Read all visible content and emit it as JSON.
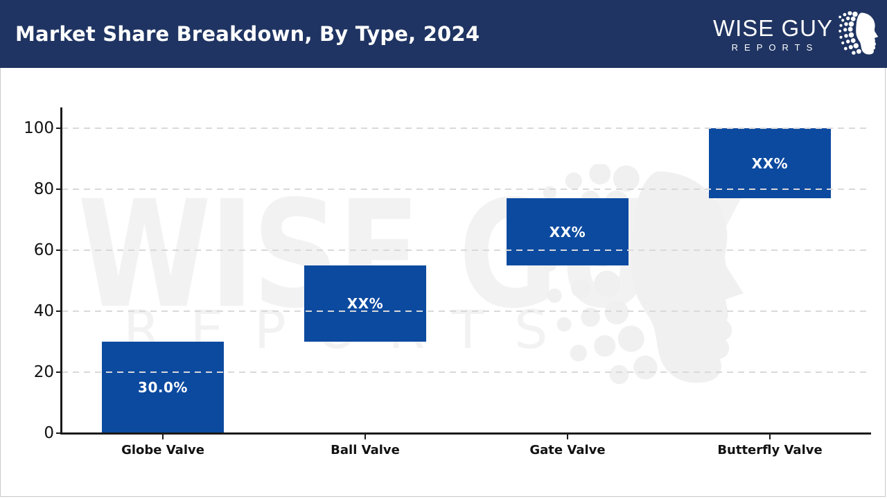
{
  "header": {
    "title": "Market Share Breakdown, By Type, 2024",
    "logo": {
      "line1": "WISE GUY",
      "line2": "REPORTS"
    }
  },
  "watermark": {
    "line1": "WISE GUY",
    "line2": "REPORTS"
  },
  "chart_data": {
    "type": "bar",
    "variant": "waterfall",
    "title": "Market Share Breakdown, By Type, 2024",
    "categories": [
      "Globe Valve",
      "Ball Valve",
      "Gate Valve",
      "Butterfly Valve"
    ],
    "segments": [
      {
        "category": "Globe Valve",
        "start": 0,
        "end": 30,
        "value": 30,
        "label": "30.0%"
      },
      {
        "category": "Ball Valve",
        "start": 30,
        "end": 55,
        "value": 25,
        "label": "XX%"
      },
      {
        "category": "Gate Valve",
        "start": 55,
        "end": 77,
        "value": 22,
        "label": "XX%"
      },
      {
        "category": "Butterfly Valve",
        "start": 77,
        "end": 100,
        "value": 23,
        "label": "XX%"
      }
    ],
    "xlabel": "",
    "ylabel": "",
    "ylim": [
      0,
      100
    ],
    "yticks": [
      0,
      20,
      40,
      60,
      80,
      100
    ],
    "grid": "horizontal-dashed",
    "legend": "none",
    "bar_color": "#0c4aa0",
    "bar_label_color": "#ffffff"
  },
  "theme": {
    "header_bg": "#1f3462",
    "bar_blue": "#0c4aa0",
    "grid_color": "#d9d9d9",
    "axis_color": "#1a1a1a",
    "watermark_color": "#f2f2f2",
    "frame_border": "#c9c9c9"
  }
}
